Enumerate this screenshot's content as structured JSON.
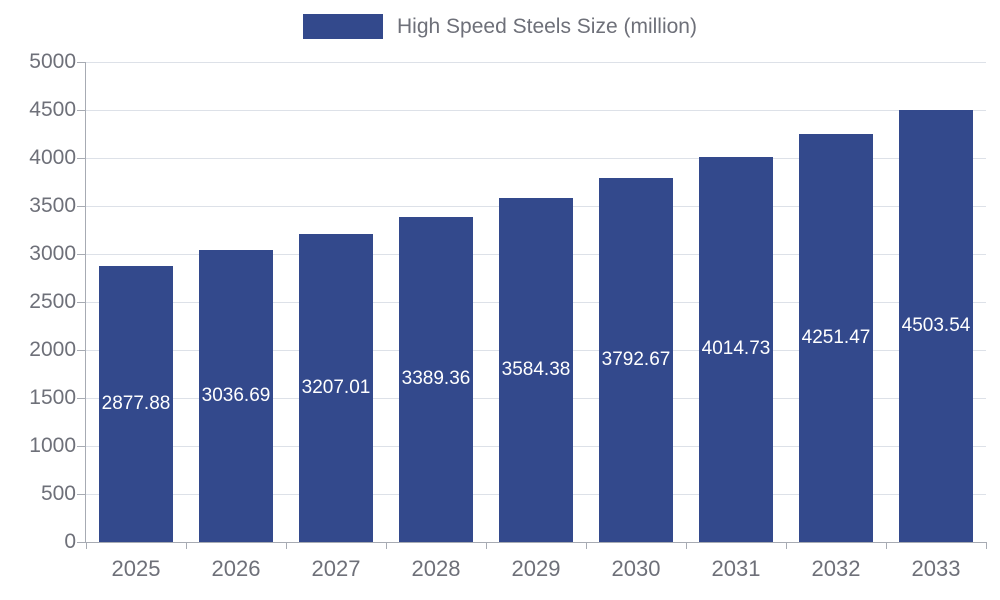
{
  "legend": {
    "label": "High Speed Steels Size (million)"
  },
  "colors": {
    "bar": "#33498C",
    "grid": "#dde1e8",
    "axis": "#a7abb3",
    "axis_text": "#6e7079",
    "value_text": "#ffffff"
  },
  "chart_data": {
    "type": "bar",
    "title": "High Speed Steels Size (million)",
    "categories": [
      "2025",
      "2026",
      "2027",
      "2028",
      "2029",
      "2030",
      "2031",
      "2032",
      "2033"
    ],
    "values": [
      2877.88,
      3036.69,
      3207.01,
      3389.36,
      3584.38,
      3792.67,
      4014.73,
      4251.47,
      4503.54
    ],
    "value_labels": [
      "2877.88",
      "3036.69",
      "3207.01",
      "3389.36",
      "3584.38",
      "3792.67",
      "4014.73",
      "4251.47",
      "4503.54"
    ],
    "xlabel": "",
    "ylabel": "",
    "ylim": [
      0,
      5000
    ],
    "y_tick_step": 500,
    "y_tick_labels": [
      "0",
      "500",
      "1000",
      "1500",
      "2000",
      "2500",
      "3000",
      "3500",
      "4000",
      "4500",
      "5000"
    ],
    "grid": true,
    "legend_position": "top-center"
  }
}
